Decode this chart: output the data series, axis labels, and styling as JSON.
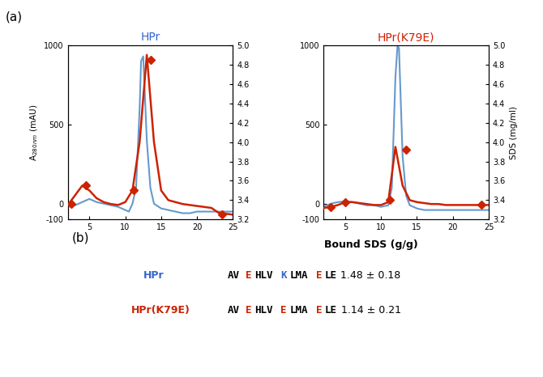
{
  "title_left": "HPr",
  "title_right": "HPr(K79E)",
  "panel_label": "(a)",
  "panel_b_label": "(b)",
  "left_blue_x": [
    2,
    3,
    3.5,
    4,
    4.5,
    5,
    5.5,
    6,
    7,
    8,
    9,
    10,
    10.5,
    11,
    11.5,
    12,
    12.2,
    12.5,
    13,
    13.5,
    14,
    15,
    16,
    17,
    18,
    19,
    20,
    21,
    22,
    23,
    24,
    25
  ],
  "left_blue_y": [
    -20,
    -10,
    0,
    10,
    20,
    30,
    20,
    10,
    0,
    -10,
    -20,
    -40,
    -50,
    0,
    100,
    600,
    900,
    930,
    400,
    100,
    0,
    -30,
    -40,
    -50,
    -60,
    -60,
    -50,
    -50,
    -50,
    -50,
    -50,
    -50
  ],
  "left_red_x": [
    2,
    3,
    4,
    5,
    6,
    7,
    8,
    9,
    10,
    11,
    12,
    13,
    14,
    15,
    16,
    17,
    18,
    19,
    20,
    21,
    22,
    23,
    24,
    25
  ],
  "left_red_y": [
    3.35,
    3.45,
    3.55,
    3.5,
    3.42,
    3.38,
    3.36,
    3.35,
    3.38,
    3.5,
    4.0,
    4.9,
    4.0,
    3.5,
    3.4,
    3.38,
    3.36,
    3.35,
    3.34,
    3.33,
    3.32,
    3.27,
    3.26,
    3.25
  ],
  "left_red_markers_x": [
    2.5,
    4.5,
    11.2,
    13.5,
    23.5
  ],
  "left_red_markers_y": [
    3.36,
    3.55,
    3.5,
    4.85,
    3.25
  ],
  "right_blue_x": [
    2,
    2.5,
    3,
    3.5,
    4,
    5,
    6,
    7,
    8,
    9,
    10,
    11,
    11.5,
    12,
    12.3,
    12.5,
    13,
    13.5,
    14,
    15,
    16,
    17,
    18,
    19,
    20,
    21,
    22,
    23,
    24,
    25
  ],
  "right_blue_y": [
    -20,
    -10,
    0,
    5,
    10,
    15,
    10,
    0,
    -10,
    -10,
    -20,
    -10,
    100,
    800,
    1000,
    980,
    300,
    50,
    -10,
    -30,
    -40,
    -40,
    -40,
    -40,
    -40,
    -40,
    -40,
    -40,
    -40,
    -40
  ],
  "right_red_x": [
    2,
    3,
    4,
    5,
    6,
    7,
    8,
    9,
    10,
    11,
    12,
    13,
    14,
    15,
    16,
    17,
    18,
    19,
    20,
    21,
    22,
    23,
    24,
    25
  ],
  "right_red_y": [
    3.32,
    3.33,
    3.35,
    3.38,
    3.38,
    3.37,
    3.36,
    3.35,
    3.35,
    3.38,
    3.95,
    3.55,
    3.4,
    3.38,
    3.37,
    3.36,
    3.36,
    3.35,
    3.35,
    3.35,
    3.35,
    3.35,
    3.35,
    3.35
  ],
  "right_red_markers_x": [
    3,
    5,
    11.2,
    13.5,
    24
  ],
  "right_red_markers_y": [
    3.33,
    3.38,
    3.4,
    3.92,
    3.35
  ],
  "xlim": [
    2,
    25
  ],
  "ylim_left": [
    -100,
    1000
  ],
  "ylim_right": [
    3.2,
    5.0
  ],
  "blue_color": "#6699cc",
  "red_color": "#cc2200",
  "title_color_blue": "#3366cc",
  "title_color_red": "#cc2200",
  "seq1_parts": [
    {
      "text": "AV",
      "color": "#000000"
    },
    {
      "text": "E",
      "color": "#cc2200"
    },
    {
      "text": "HLV",
      "color": "#000000"
    },
    {
      "text": "K",
      "color": "#3366cc"
    },
    {
      "text": "LMA",
      "color": "#000000"
    },
    {
      "text": "E",
      "color": "#cc2200"
    },
    {
      "text": "LE",
      "color": "#000000"
    }
  ],
  "seq2_parts": [
    {
      "text": "AV",
      "color": "#000000"
    },
    {
      "text": "E",
      "color": "#cc2200"
    },
    {
      "text": "HLV",
      "color": "#000000"
    },
    {
      "text": "E",
      "color": "#cc2200"
    },
    {
      "text": "LMA",
      "color": "#000000"
    },
    {
      "text": "E",
      "color": "#cc2200"
    },
    {
      "text": "LE",
      "color": "#000000"
    }
  ],
  "row1_label": "HPr",
  "row2_label": "HPr(K79E)",
  "row1_value": "1.48 ± 0.18",
  "row2_value": "1.14 ± 0.21",
  "bound_sds_label": "Bound SDS (g/g)"
}
